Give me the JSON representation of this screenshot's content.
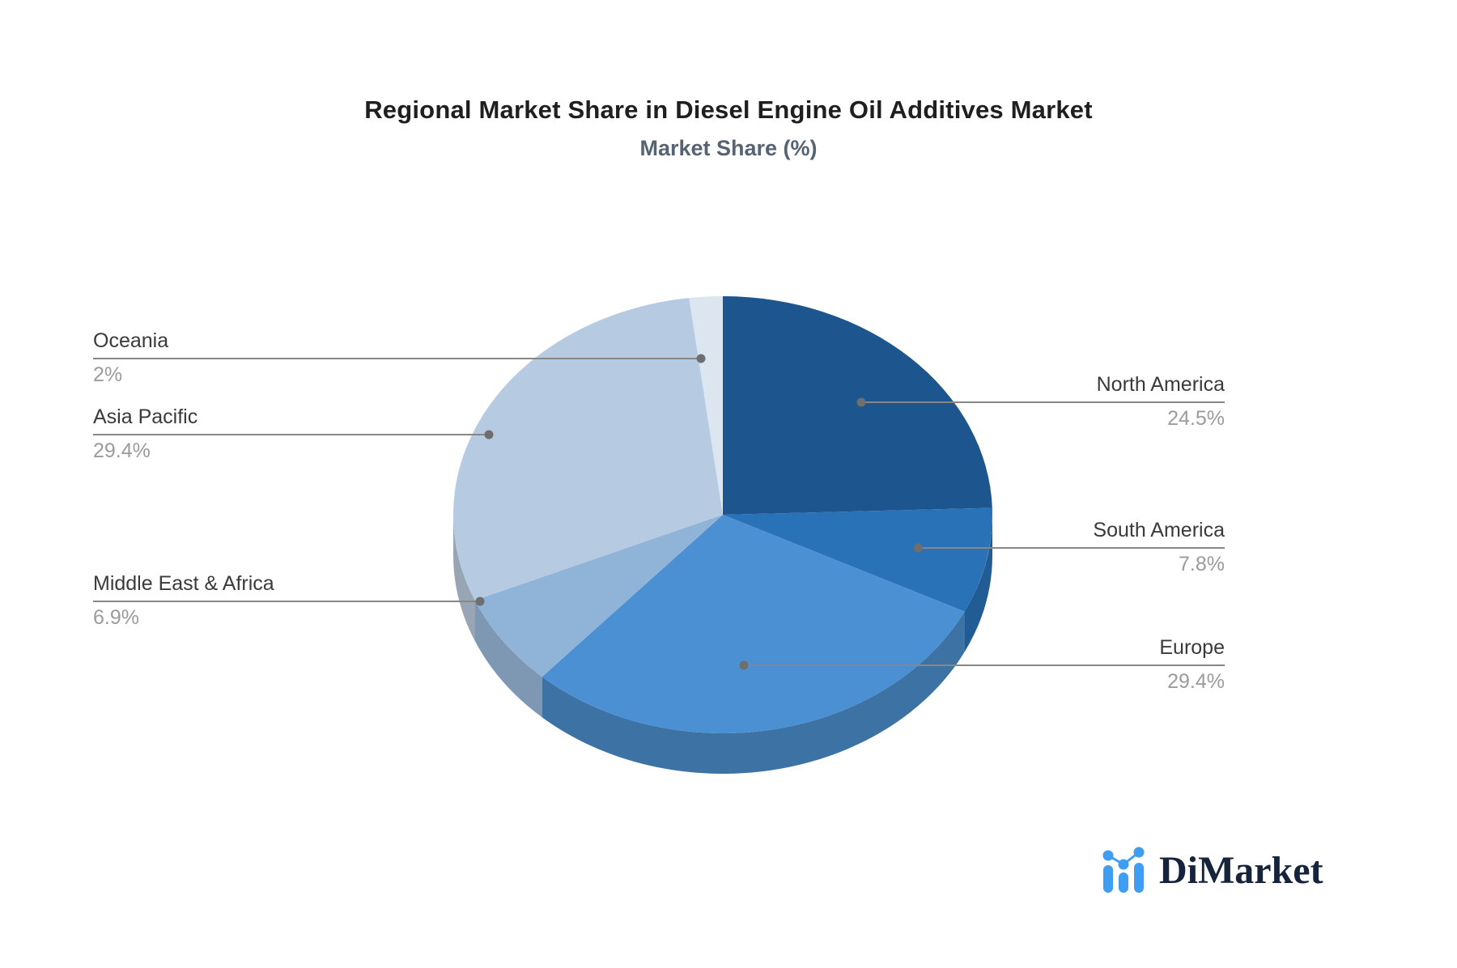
{
  "header": {
    "title": "Regional Market Share in Diesel Engine Oil Additives Market",
    "subtitle": "Market Share (%)"
  },
  "chart_data": {
    "type": "pie",
    "title": "Regional Market Share in Diesel Engine Oil Additives Market",
    "subtitle": "Market Share (%)",
    "unit": "%",
    "start_angle": "12 o'clock, clockwise",
    "is_3d": true,
    "slices": [
      {
        "label": "North America",
        "value": 24.5,
        "display": "24.5%",
        "color": "#1d568f",
        "side_color": "#164270",
        "label_side": "right"
      },
      {
        "label": "South America",
        "value": 7.8,
        "display": "7.8%",
        "color": "#2a72b8",
        "side_color": "#225c94",
        "label_side": "right"
      },
      {
        "label": "Europe",
        "value": 29.4,
        "display": "29.4%",
        "color": "#4b90d2",
        "side_color": "#3d72a5",
        "label_side": "right"
      },
      {
        "label": "Middle East & Africa",
        "value": 6.9,
        "display": "6.9%",
        "color": "#90b3d8",
        "side_color": "#7e97b2",
        "label_side": "left"
      },
      {
        "label": "Asia Pacific",
        "value": 29.4,
        "display": "29.4%",
        "color": "#b6cbe2",
        "side_color": "#98a5b4",
        "label_side": "left"
      },
      {
        "label": "Oceania",
        "value": 2.0,
        "display": "2%",
        "color": "#dce6f1",
        "side_color": "#b5becb",
        "label_side": "left"
      }
    ],
    "connector_color": "#878787",
    "connector_dot_color": "#6e6e6e",
    "label_name_color": "#3a3a3a",
    "label_value_color": "#9b9b9b"
  },
  "branding": {
    "logo_text": "DiMarket",
    "logo_text_color": "#16233c",
    "logo_icon": "bar-chart-with-trend-dots",
    "logo_icon_color": "#3f9ef2"
  }
}
